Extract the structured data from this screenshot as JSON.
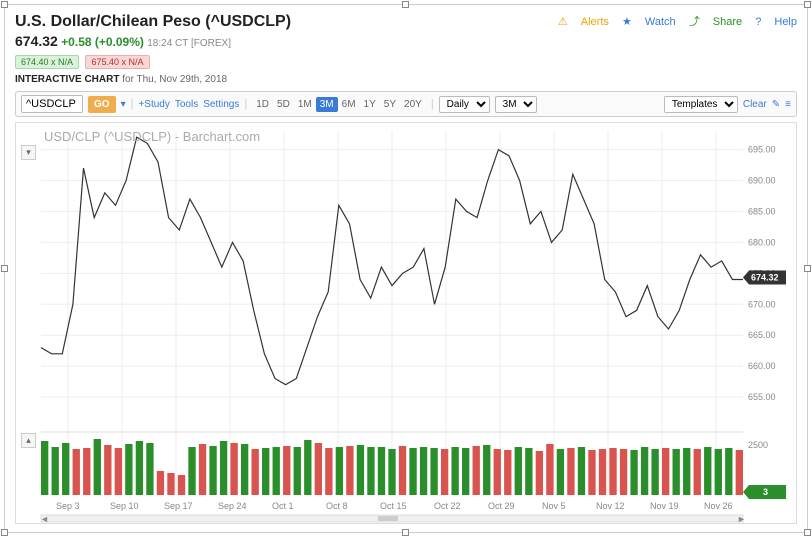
{
  "header": {
    "title": "U.S. Dollar/Chilean Peso (^USDCLP)",
    "price": "674.32",
    "change": "+0.58 (+0.09%)",
    "timestamp": "18:24 CT [FOREX]",
    "pill_green": "674.40 x N/A",
    "pill_red": "675.40 x N/A",
    "subheader": "INTERACTIVE CHART",
    "subheader_date": "for Thu, Nov 29th, 2018"
  },
  "toplinks": {
    "alerts": "Alerts",
    "watch": "Watch",
    "share": "Share",
    "help": "Help"
  },
  "toolbar": {
    "symbol": "^USDCLP",
    "go": "GO",
    "study": "+Study",
    "tools": "Tools",
    "settings": "Settings",
    "timeframes": [
      "1D",
      "5D",
      "1M",
      "3M",
      "6M",
      "1Y",
      "5Y",
      "20Y"
    ],
    "tf_active": "3M",
    "chart_type": "Daily",
    "range": "3M",
    "templates": "Templates",
    "clear": "Clear"
  },
  "chart": {
    "title": "USD/CLP (^USDCLP) - Barchart.com",
    "ylim": [
      650,
      698
    ],
    "yticks": [
      655.0,
      660.0,
      665.0,
      670.0,
      675.0,
      680.0,
      685.0,
      690.0,
      695.0
    ],
    "current": 674.32,
    "xlabels": [
      "Sep 3",
      "Sep 10",
      "Sep 17",
      "Sep 24",
      "Oct 1",
      "Oct 8",
      "Oct 15",
      "Oct 22",
      "Oct 29",
      "Nov 5",
      "Nov 12",
      "Nov 19",
      "Nov 26"
    ],
    "line_color": "#333333",
    "grid_color": "#eeeeee",
    "price_path": [
      663,
      662,
      662,
      670,
      692,
      684,
      688,
      686,
      690,
      697,
      696,
      693,
      684,
      682,
      687,
      684,
      680,
      676,
      680,
      677,
      669,
      662,
      658,
      657,
      658,
      663,
      668,
      672,
      686,
      683,
      674,
      671,
      676,
      673,
      675,
      676,
      679,
      670,
      676,
      687,
      685,
      684,
      690,
      695,
      694,
      690,
      683,
      685,
      680,
      682,
      691,
      687,
      683,
      674,
      672,
      668,
      669,
      673,
      668,
      666,
      669,
      674,
      678,
      676,
      677,
      674,
      674
    ],
    "volume": {
      "ylim": [
        0,
        3000
      ],
      "ytick": 2500,
      "current": 3,
      "up_color": "#2a8f2a",
      "down_color": "#d9534f",
      "bars": [
        [
          2700,
          1
        ],
        [
          2400,
          1
        ],
        [
          2600,
          1
        ],
        [
          2300,
          0
        ],
        [
          2350,
          0
        ],
        [
          2800,
          1
        ],
        [
          2500,
          0
        ],
        [
          2350,
          0
        ],
        [
          2550,
          1
        ],
        [
          2700,
          1
        ],
        [
          2600,
          1
        ],
        [
          1200,
          0
        ],
        [
          1100,
          0
        ],
        [
          1000,
          0
        ],
        [
          2400,
          1
        ],
        [
          2550,
          0
        ],
        [
          2450,
          1
        ],
        [
          2700,
          1
        ],
        [
          2600,
          0
        ],
        [
          2550,
          1
        ],
        [
          2300,
          0
        ],
        [
          2350,
          1
        ],
        [
          2400,
          1
        ],
        [
          2450,
          0
        ],
        [
          2400,
          1
        ],
        [
          2750,
          1
        ],
        [
          2600,
          0
        ],
        [
          2350,
          0
        ],
        [
          2400,
          1
        ],
        [
          2450,
          0
        ],
        [
          2500,
          1
        ],
        [
          2400,
          1
        ],
        [
          2400,
          1
        ],
        [
          2300,
          1
        ],
        [
          2450,
          0
        ],
        [
          2350,
          1
        ],
        [
          2400,
          1
        ],
        [
          2350,
          1
        ],
        [
          2300,
          0
        ],
        [
          2400,
          1
        ],
        [
          2350,
          1
        ],
        [
          2450,
          0
        ],
        [
          2500,
          1
        ],
        [
          2300,
          0
        ],
        [
          2250,
          0
        ],
        [
          2400,
          1
        ],
        [
          2350,
          1
        ],
        [
          2200,
          0
        ],
        [
          2550,
          0
        ],
        [
          2300,
          1
        ],
        [
          2350,
          0
        ],
        [
          2400,
          1
        ],
        [
          2250,
          0
        ],
        [
          2300,
          0
        ],
        [
          2350,
          0
        ],
        [
          2300,
          0
        ],
        [
          2250,
          1
        ],
        [
          2400,
          1
        ],
        [
          2300,
          1
        ],
        [
          2350,
          0
        ],
        [
          2300,
          1
        ],
        [
          2350,
          1
        ],
        [
          2300,
          0
        ],
        [
          2400,
          1
        ],
        [
          2300,
          1
        ],
        [
          2350,
          1
        ],
        [
          2250,
          0
        ]
      ]
    }
  }
}
